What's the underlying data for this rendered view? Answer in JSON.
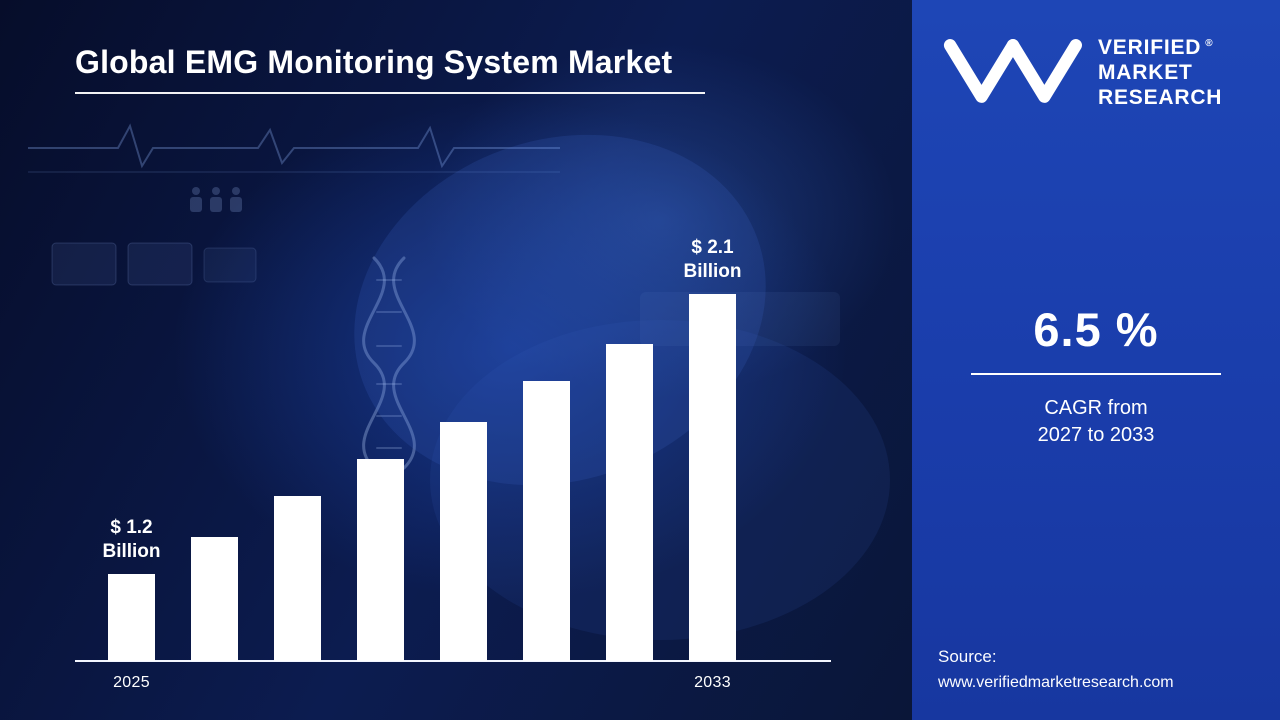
{
  "title": "Global EMG Monitoring System Market",
  "logo": {
    "line1": "VERIFIED",
    "line2": "MARKET",
    "line3": "RESEARCH",
    "registered": "®"
  },
  "stats": {
    "cagr_value": "6.5 %",
    "caption_line1": "CAGR from",
    "caption_line2": "2027 to 2033"
  },
  "source": {
    "label": "Source:",
    "url": "www.verifiedmarketresearch.com"
  },
  "chart_data": {
    "type": "bar",
    "title": "Global EMG Monitoring System Market",
    "categories": [
      "2025",
      "",
      "",
      "",
      "",
      "",
      "",
      "2033"
    ],
    "values": [
      1.2,
      1.32,
      1.45,
      1.57,
      1.69,
      1.82,
      1.94,
      2.1
    ],
    "unit": "Billion",
    "bar_color": "#ffffff",
    "value_labels": [
      {
        "index": 0,
        "lines": [
          "$ 1.2",
          "Billion"
        ]
      },
      {
        "index": 7,
        "lines": [
          "$ 2.1",
          "Billion"
        ]
      }
    ],
    "ylim": [
      0,
      2.3
    ],
    "grid": false,
    "legend": false
  }
}
